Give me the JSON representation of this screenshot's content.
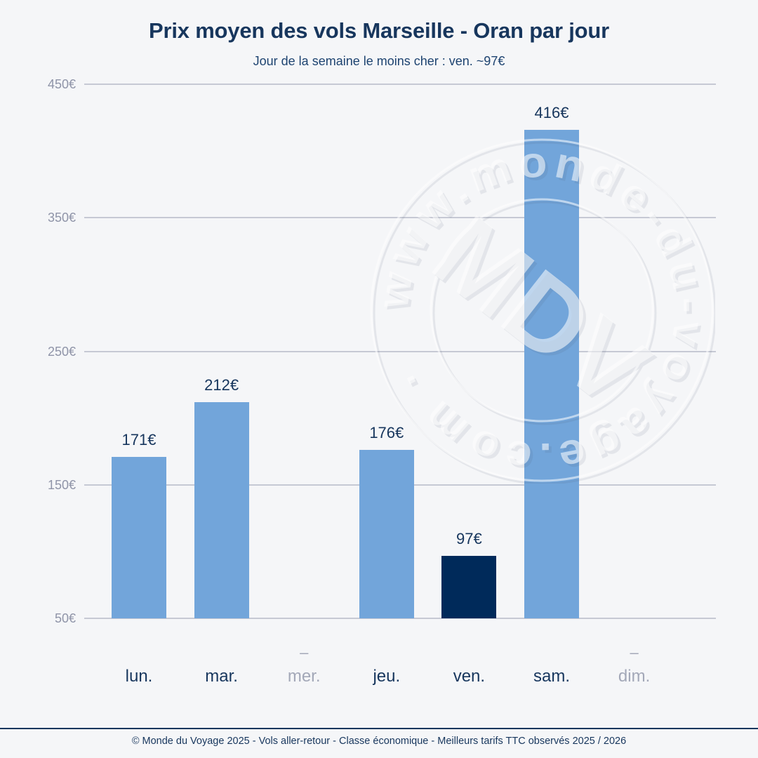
{
  "header": {
    "title": "Prix moyen des vols Marseille - Oran par jour",
    "subtitle": "Jour de la semaine le moins cher : ven. ~97€"
  },
  "chart_data": {
    "type": "bar",
    "title": "Prix moyen des vols Marseille - Oran par jour",
    "subtitle": "Jour de la semaine le moins cher : ven. ~97€",
    "categories": [
      "lun.",
      "mar.",
      "mer.",
      "jeu.",
      "ven.",
      "sam.",
      "dim."
    ],
    "values": [
      171,
      212,
      null,
      176,
      97,
      416,
      null
    ],
    "value_labels": [
      "171€",
      "212€",
      null,
      "176€",
      "97€",
      "416€",
      null
    ],
    "missing_marker": "–",
    "highlight_index": 4,
    "xlabel": "",
    "ylabel": "",
    "yticks": [
      450,
      350,
      250,
      150,
      50
    ],
    "ytick_labels": [
      "450€",
      "350€",
      "250€",
      "150€",
      "50€"
    ],
    "ylim": [
      50,
      450
    ],
    "grid": true,
    "legend": false,
    "currency": "EUR"
  },
  "colors": {
    "background": "#f5f6f8",
    "bar": "#72a5da",
    "bar_highlight": "#002a5a",
    "title_text": "#17365d",
    "subtitle_text": "#1d4370",
    "gridline": "#c6c9d4",
    "ytick_text": "#8f94a8",
    "day_label": "#17365d",
    "day_label_muted": "#a3a8b8",
    "footer": "#17365d"
  },
  "watermark": {
    "ring_text": "www.monde-du-voyage.com",
    "separator": "·",
    "center_text": "MDV"
  },
  "footer": {
    "text": "© Monde du Voyage 2025 - Vols aller-retour - Classe économique - Meilleurs tarifs TTC observés 2025 / 2026"
  }
}
